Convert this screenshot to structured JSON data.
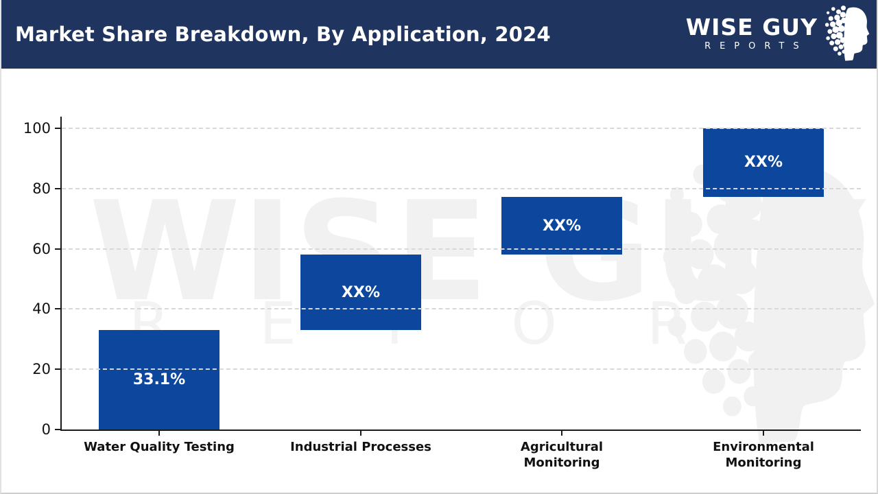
{
  "header": {
    "title": "Market Share Breakdown, By Application, 2024",
    "logo": {
      "line1": "WISE GUY",
      "line2": "REPORTS"
    }
  },
  "watermark": {
    "line1": "WISE GUY",
    "line2": "R E P O R T S"
  },
  "colors": {
    "header_bg": "#1f345e",
    "bar": "#0d469d",
    "grid": "#d8d8d8",
    "axis": "#1a1a1a",
    "watermark": "#f1f1f1"
  },
  "chart_data": {
    "type": "bar",
    "subtype": "waterfall",
    "title": "Market Share Breakdown, By Application, 2024",
    "categories": [
      "Water Quality Testing",
      "Industrial Processes",
      "Agricultural Monitoring",
      "Environmental Monitoring"
    ],
    "segments": [
      [
        0,
        33.1
      ],
      [
        33.1,
        58.0
      ],
      [
        58.0,
        77.3
      ],
      [
        77.3,
        100.0
      ]
    ],
    "increments_est": [
      33.1,
      24.9,
      19.3,
      22.7
    ],
    "bar_labels": [
      "33.1%",
      "XX%",
      "XX%",
      "XX%"
    ],
    "yticks": [
      0,
      20,
      40,
      60,
      80,
      100
    ],
    "ylim": [
      0,
      100
    ],
    "xlabel": "",
    "ylabel": "",
    "grid": "dashed-horizontal",
    "legend": "none"
  }
}
